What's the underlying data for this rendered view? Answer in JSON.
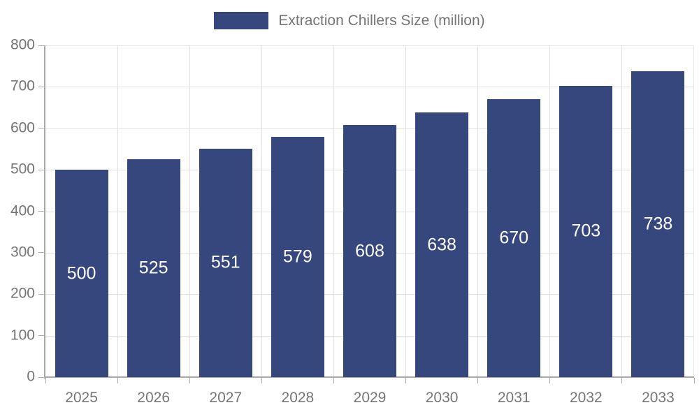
{
  "chart_data": {
    "type": "bar",
    "series_name": "Extraction Chillers Size (million)",
    "categories": [
      "2025",
      "2026",
      "2027",
      "2028",
      "2029",
      "2030",
      "2031",
      "2032",
      "2033"
    ],
    "values": [
      500,
      525,
      551,
      579,
      608,
      638,
      670,
      703,
      738
    ],
    "xlabel": "",
    "ylabel": "",
    "ylim": [
      0,
      800
    ],
    "yticks": [
      0,
      100,
      200,
      300,
      400,
      500,
      600,
      700,
      800
    ],
    "grid": true,
    "legend_position": "top-center",
    "bar_labels_inside": true,
    "colors": {
      "bar": "#36477e",
      "bar_label_text": "#ffffff",
      "axis_text": "#757575",
      "legend_text": "#757575",
      "gridline": "#e0e0e0",
      "axis_line": "#a9a9a9",
      "plot_border": "#e6e6e6",
      "background": "#ffffff"
    }
  }
}
